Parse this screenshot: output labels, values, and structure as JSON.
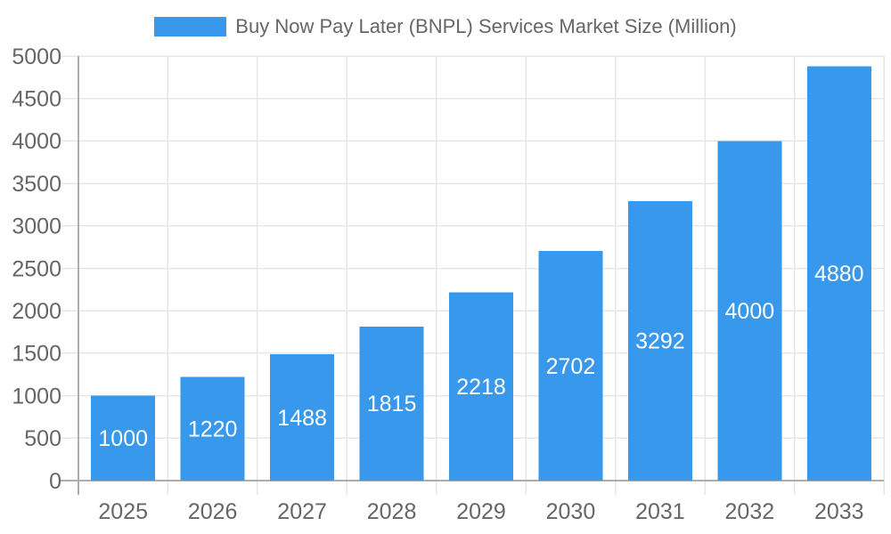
{
  "legend": {
    "label": "Buy Now Pay Later (BNPL) Services Market Size (Million)"
  },
  "colors": {
    "bar": "#3899EC",
    "grid": "#e7e7e7",
    "tick": "#d9d9d9",
    "axis": "#adadad",
    "axis_text": "#666666",
    "value_label": "#ffffff",
    "background": "#ffffff"
  },
  "chart_data": {
    "type": "bar",
    "title": "Buy Now Pay Later (BNPL) Services Market Size (Million)",
    "series_name": "Buy Now Pay Later (BNPL) Services Market Size (Million)",
    "categories": [
      "2025",
      "2026",
      "2027",
      "2028",
      "2029",
      "2030",
      "2031",
      "2032",
      "2033"
    ],
    "values": [
      1000,
      1220,
      1488,
      1815,
      2218,
      2702,
      3292,
      4000,
      4880
    ],
    "y_ticks": [
      0,
      500,
      1000,
      1500,
      2000,
      2500,
      3000,
      3500,
      4000,
      4500,
      5000
    ],
    "ylim": [
      0,
      5000
    ],
    "xlabel": "",
    "ylabel": "",
    "grid": true,
    "legend_position": "top-center",
    "value_labels": "inside-center"
  }
}
